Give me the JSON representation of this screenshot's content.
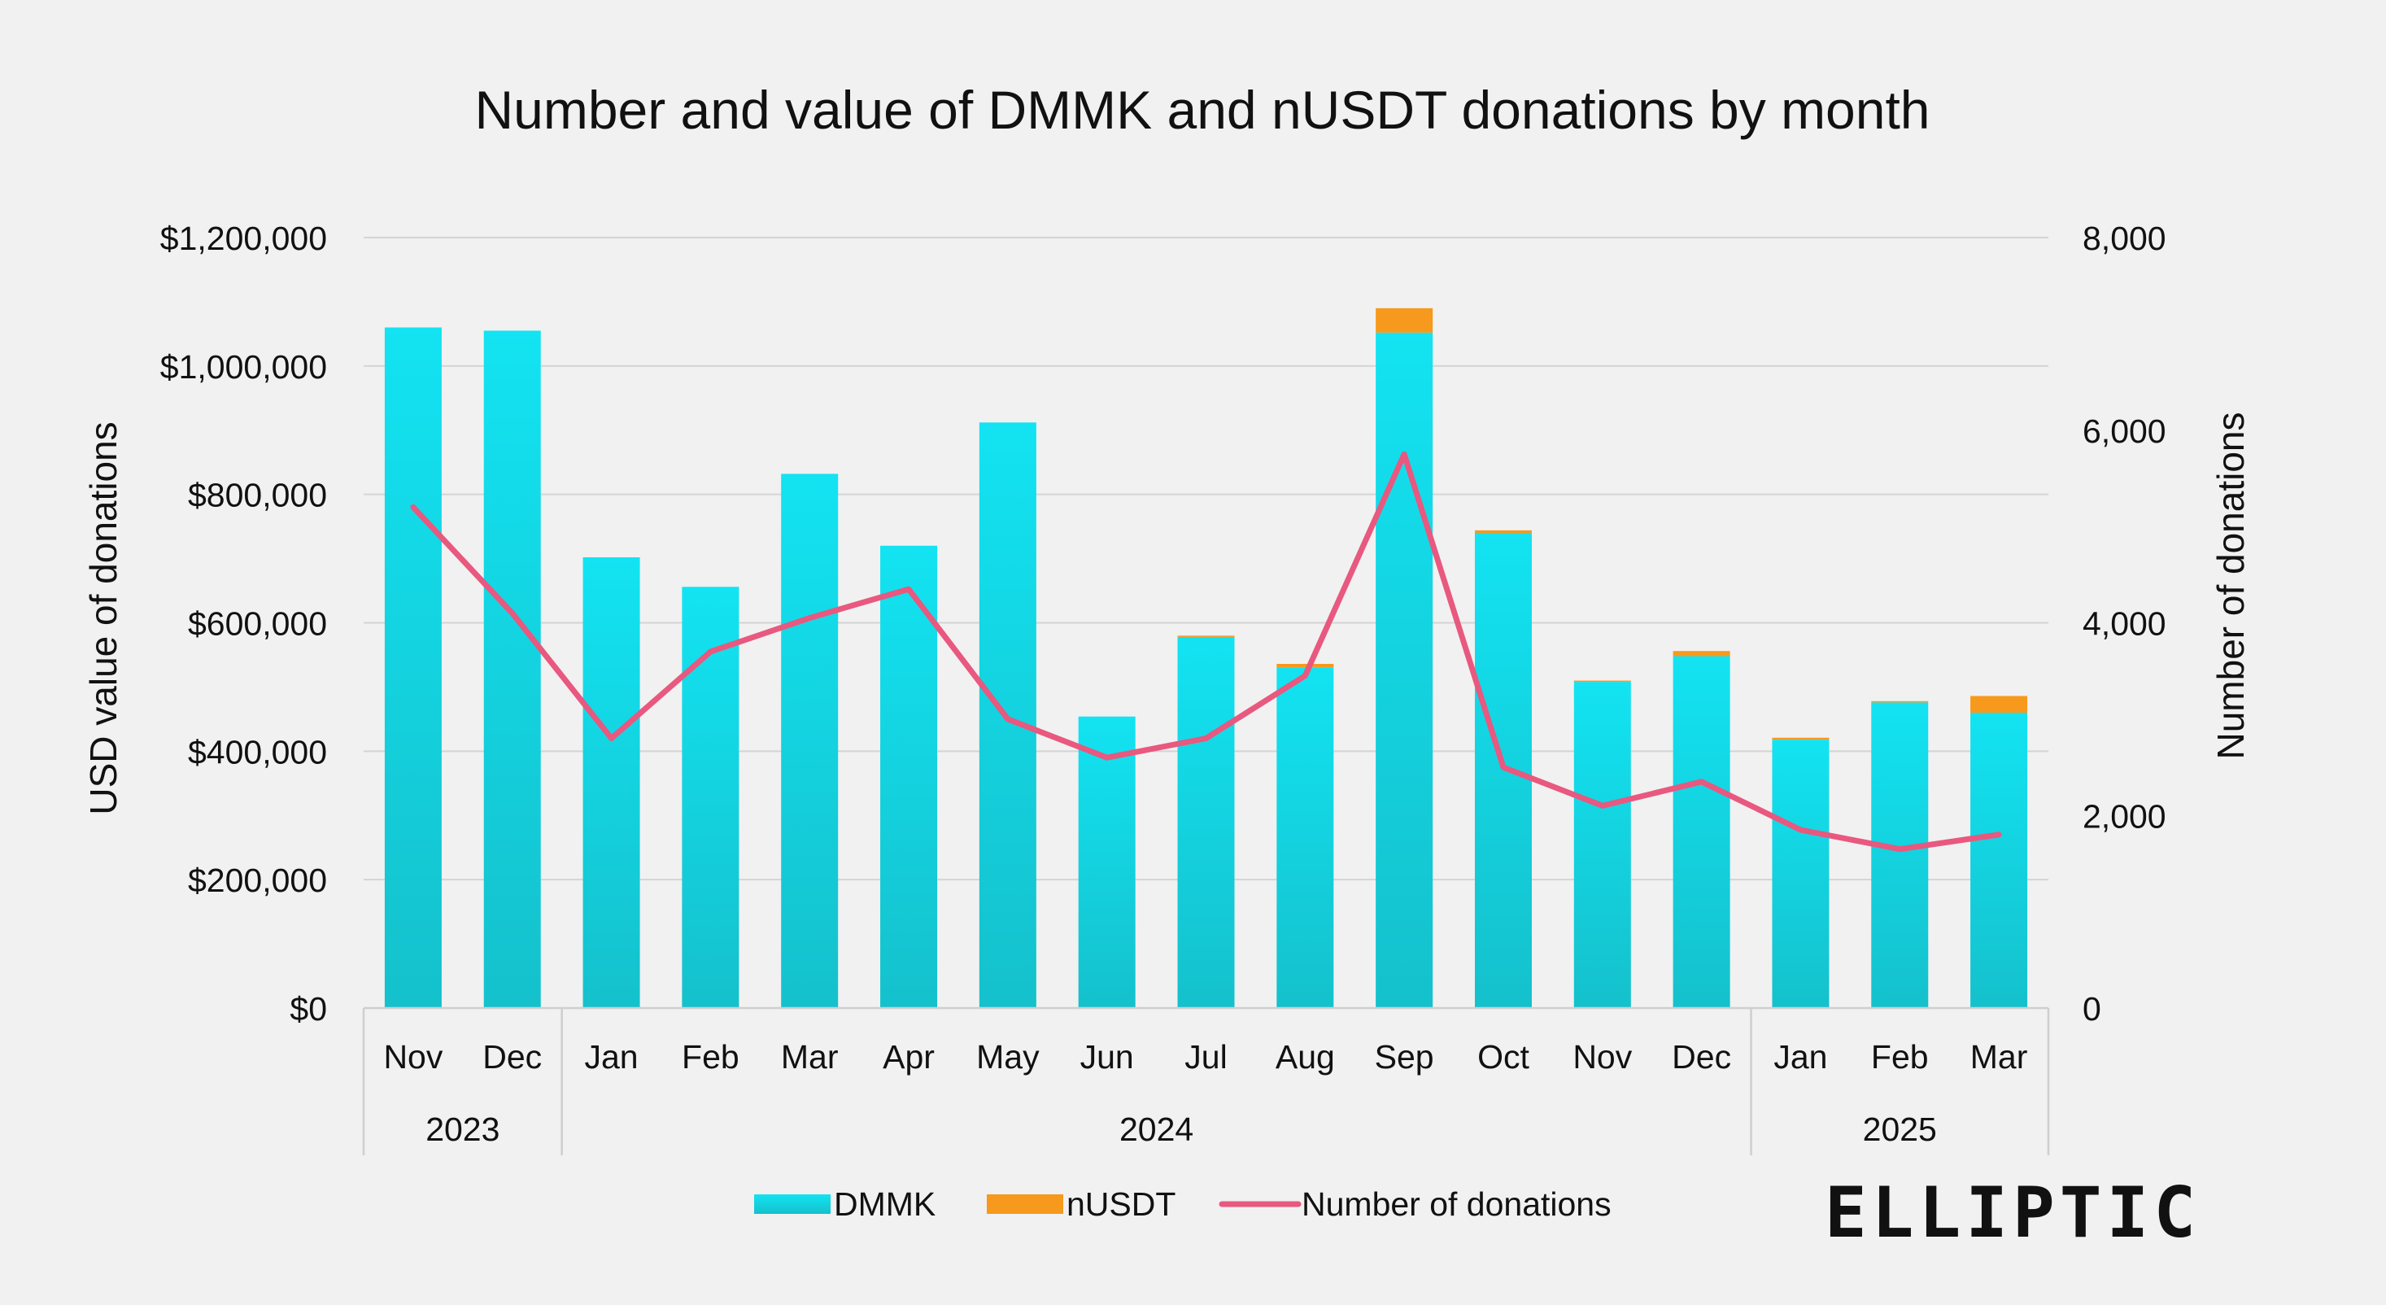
{
  "chart_data": {
    "type": "bar",
    "title": "Number and value of DMMK and nUSDT donations by month",
    "ylabel": "USD value of donations",
    "y2label": "Number of donations",
    "ylim": [
      0,
      1200000
    ],
    "y2lim": [
      0,
      8000
    ],
    "yticks": [
      "$0",
      "$200,000",
      "$400,000",
      "$600,000",
      "$800,000",
      "$1,000,000",
      "$1,200,000"
    ],
    "y2ticks": [
      "0",
      "2,000",
      "4,000",
      "6,000",
      "8,000"
    ],
    "categories": [
      "Nov",
      "Dec",
      "Jan",
      "Feb",
      "Mar",
      "Apr",
      "May",
      "Jun",
      "Jul",
      "Aug",
      "Sep",
      "Oct",
      "Nov",
      "Dec",
      "Jan",
      "Feb",
      "Mar"
    ],
    "year_groups": [
      {
        "label": "2023",
        "count": 2
      },
      {
        "label": "2024",
        "count": 12
      },
      {
        "label": "2025",
        "count": 3
      }
    ],
    "series": [
      {
        "name": "DMMK",
        "type": "bar",
        "color": "#13e0ef",
        "values": [
          1060000,
          1055000,
          702000,
          656000,
          832000,
          720000,
          912000,
          454000,
          578000,
          530000,
          1052000,
          740000,
          508000,
          548000,
          418000,
          476000,
          460000
        ]
      },
      {
        "name": "nUSDT",
        "type": "bar",
        "color": "#f7991c",
        "values": [
          0,
          0,
          0,
          0,
          0,
          0,
          0,
          0,
          2000,
          6000,
          38000,
          4000,
          2000,
          8000,
          3000,
          2000,
          26000
        ]
      },
      {
        "name": "Number of donations",
        "type": "line",
        "axis": "y2",
        "color": "#e8587f",
        "values": [
          5200,
          4100,
          2800,
          3700,
          4050,
          4350,
          3000,
          2600,
          2800,
          3450,
          5750,
          2500,
          2100,
          2350,
          1850,
          1650,
          1800
        ]
      }
    ],
    "legend": [
      "DMMK",
      "nUSDT",
      "Number of donations"
    ],
    "legend_position": "bottom",
    "grid": true
  },
  "brand": {
    "name": "ELLIPTIC",
    "color": "#111111"
  }
}
